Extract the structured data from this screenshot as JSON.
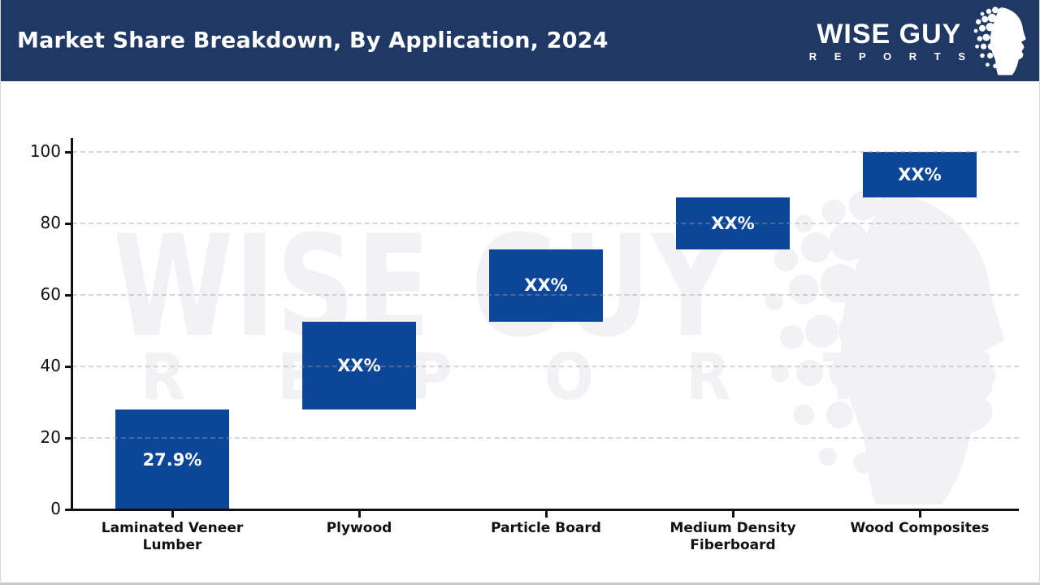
{
  "header": {
    "title": "Market Share Breakdown, By Application, 2024",
    "logo": {
      "name": "WISE GUY",
      "tagline": "R E P O R T S"
    }
  },
  "watermark": {
    "line1": "WISE GUY",
    "line2": "R E P O R T S"
  },
  "colors": {
    "header_bg": "#1f3864",
    "bar": "#0b4699",
    "bar_label": "#ffffff",
    "axis": "#111111",
    "tick_label": "#111111",
    "watermark": "#f2f2f4"
  },
  "chart_data": {
    "type": "bar",
    "subtype": "waterfall-floating-bars",
    "title": "Market Share Breakdown, By Application, 2024",
    "categories": [
      "Laminated Veneer Lumber",
      "Plywood",
      "Particle Board",
      "Medium Density Fiberboard",
      "Wood Composites"
    ],
    "segments": [
      {
        "category": "Laminated Veneer Lumber",
        "start": 0,
        "end": 27.9,
        "label": "27.9%"
      },
      {
        "category": "Plywood",
        "start": 27.9,
        "end": 52.6,
        "label": "XX%"
      },
      {
        "category": "Particle Board",
        "start": 52.6,
        "end": 72.7,
        "label": "XX%"
      },
      {
        "category": "Medium Density Fiberboard",
        "start": 72.7,
        "end": 87.3,
        "label": "XX%"
      },
      {
        "category": "Wood Composites",
        "start": 87.3,
        "end": 100,
        "label": "XX%"
      }
    ],
    "ylim": [
      0,
      100
    ],
    "yticks": [
      0,
      20,
      40,
      60,
      80,
      100
    ],
    "grid": "horizontal-dashed",
    "legend": null,
    "xlabel": "",
    "ylabel": ""
  }
}
